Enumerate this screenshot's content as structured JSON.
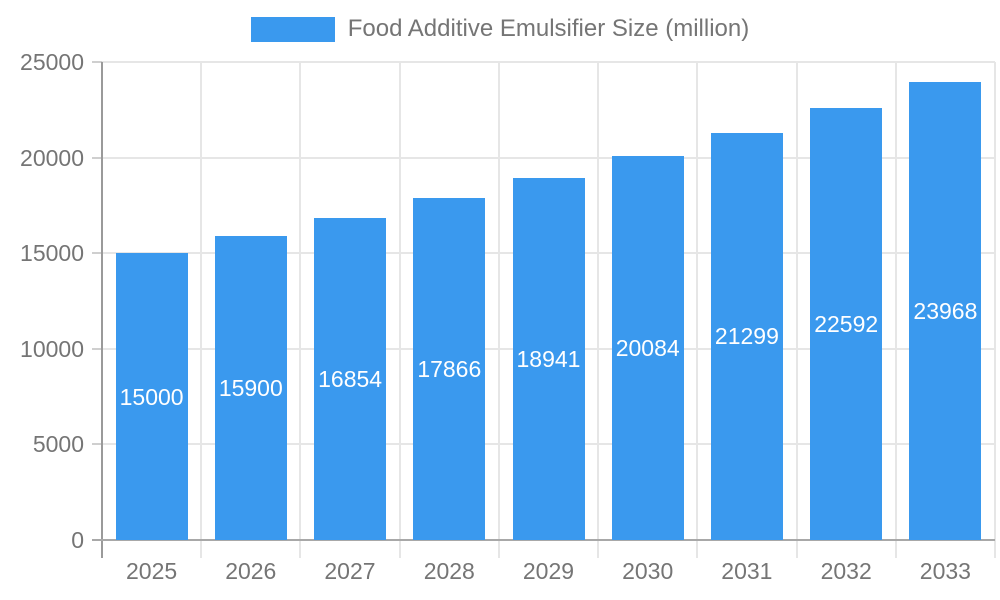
{
  "chart_data": {
    "type": "bar",
    "title": "Food Additive Emulsifier Size (million)",
    "legend": [
      {
        "label": "Food Additive Emulsifier Size (million)",
        "color": "#3A99EE"
      }
    ],
    "legend_position": "top-center",
    "categories": [
      "2025",
      "2026",
      "2027",
      "2028",
      "2029",
      "2030",
      "2031",
      "2032",
      "2033"
    ],
    "series": [
      {
        "name": "Food Additive Emulsifier Size (million)",
        "values": [
          15000,
          15900,
          16854,
          17866,
          18941,
          20084,
          21299,
          22592,
          23968
        ]
      }
    ],
    "value_labels": [
      "15000",
      "15900",
      "16854",
      "17866",
      "18941",
      "20084",
      "21299",
      "22592",
      "23968"
    ],
    "value_labels_position": "inside-center",
    "xlabel": "",
    "ylabel": "",
    "ylim": [
      0,
      25000
    ],
    "y_ticks": [
      0,
      5000,
      10000,
      15000,
      20000,
      25000
    ],
    "y_tick_labels": [
      "0",
      "5000",
      "10000",
      "15000",
      "20000",
      "25000"
    ],
    "grid": "horizontal-and-vertical",
    "colors": {
      "bar": "#3A99EE",
      "value_label": "#FFFFFF",
      "axis_text": "#757575",
      "title_text": "#757575",
      "gridline": "#E6E6E6",
      "axis_line": "#9A9A9A",
      "baseline": "#A8A8A8",
      "tick": "#CFCFCF",
      "background": "#FFFFFF"
    }
  }
}
